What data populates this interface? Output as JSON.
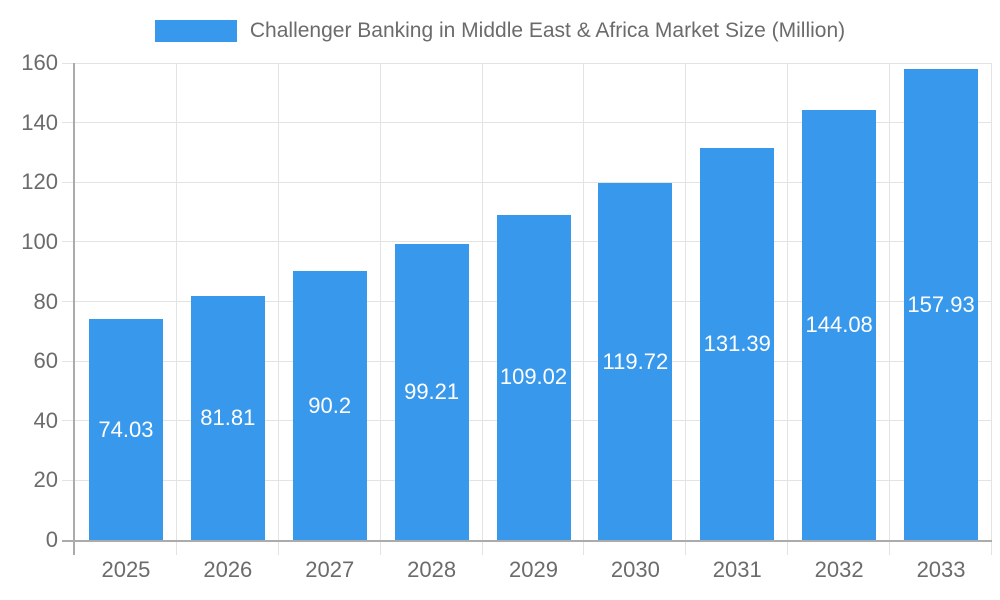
{
  "chart_data": {
    "type": "bar",
    "title": "Challenger Banking in Middle East & Africa Market Size (Million)",
    "categories": [
      "2025",
      "2026",
      "2027",
      "2028",
      "2029",
      "2030",
      "2031",
      "2032",
      "2033"
    ],
    "values": [
      74.03,
      81.81,
      90.2,
      99.21,
      109.02,
      119.72,
      131.39,
      144.08,
      157.93
    ],
    "value_labels": [
      "74.03",
      "81.81",
      "90.2",
      "99.21",
      "109.02",
      "119.72",
      "131.39",
      "144.08",
      "157.93"
    ],
    "xlabel": "",
    "ylabel": "",
    "y_ticks": [
      0,
      20,
      40,
      60,
      80,
      100,
      120,
      140,
      160
    ],
    "ylim": [
      0,
      160
    ],
    "grid": true,
    "legend_position": "top",
    "value_label_position": "center",
    "colors": {
      "bar": "#3898EC",
      "grid_line": "#e3e3e3",
      "axis_line": "#ababab",
      "tick_label": "#6b6b6b",
      "value_label": "#ffffff",
      "background": "#ffffff"
    }
  }
}
